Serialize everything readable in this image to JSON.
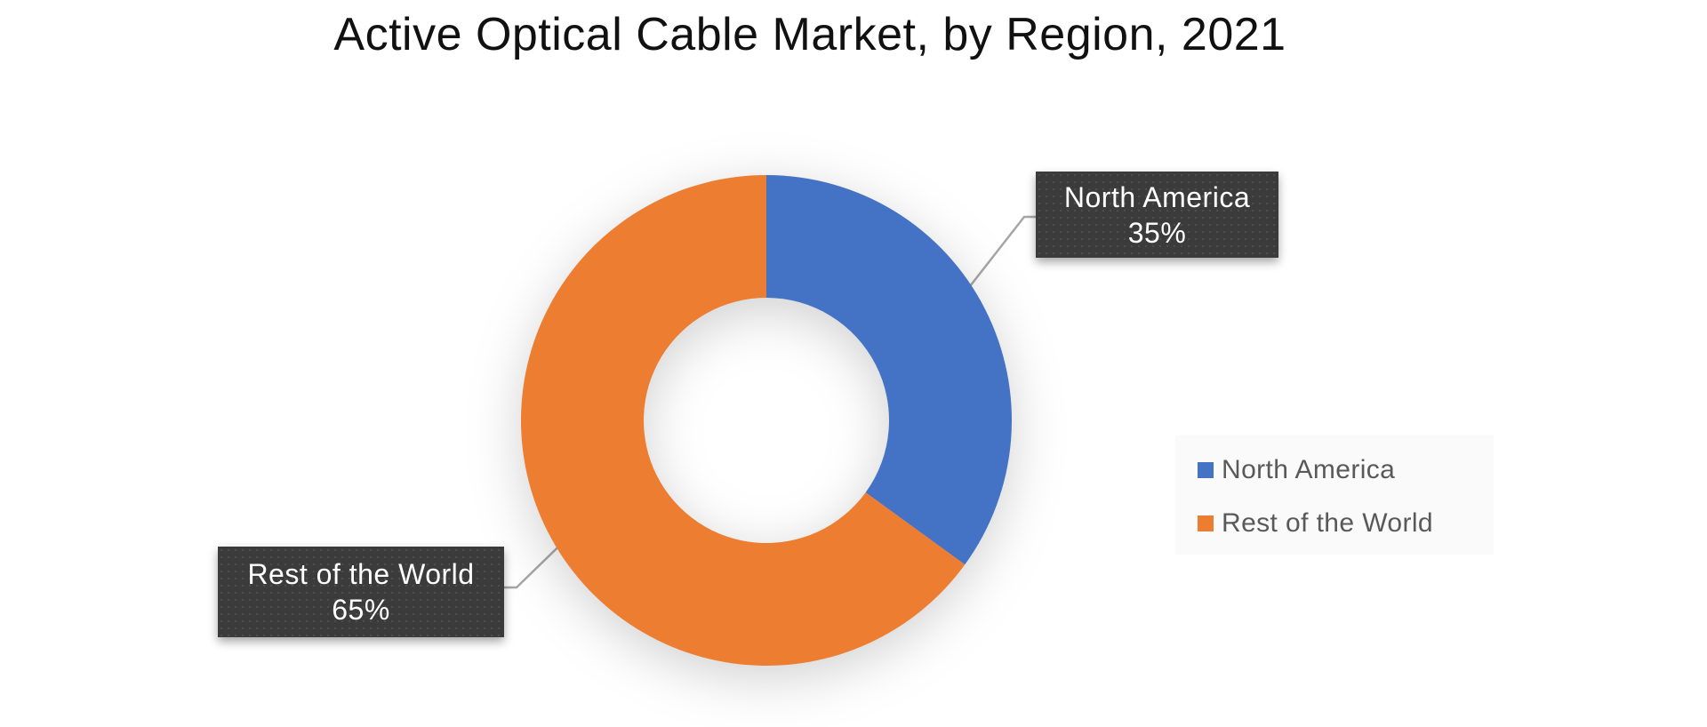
{
  "title": "Active Optical Cable Market, by Region, 2021",
  "chart_data": {
    "type": "pie",
    "subtype": "donut",
    "title": "Active Optical Cable Market, by Region, 2021",
    "categories": [
      "North America",
      "Rest of the World"
    ],
    "values": [
      35,
      65
    ],
    "value_labels": [
      "35%",
      "65%"
    ],
    "unit": "%",
    "colors": [
      "#4472C4",
      "#ED7D31"
    ],
    "hole_ratio": 0.5,
    "start_angle_deg": 0,
    "direction": "clockwise",
    "legend_position": "right",
    "annotations": [
      {
        "label": "North America",
        "value_text": "35%"
      },
      {
        "label": "Rest of the World",
        "value_text": "65%"
      }
    ]
  },
  "styles": {
    "background": "#FFFFFF",
    "title_color": "#111111",
    "callout_bg": "#3B3B3B",
    "callout_text": "#FFFFFF",
    "leader_line": "#A6A6A6",
    "legend_bg": "#FAFAFA",
    "legend_text": "#595959"
  }
}
